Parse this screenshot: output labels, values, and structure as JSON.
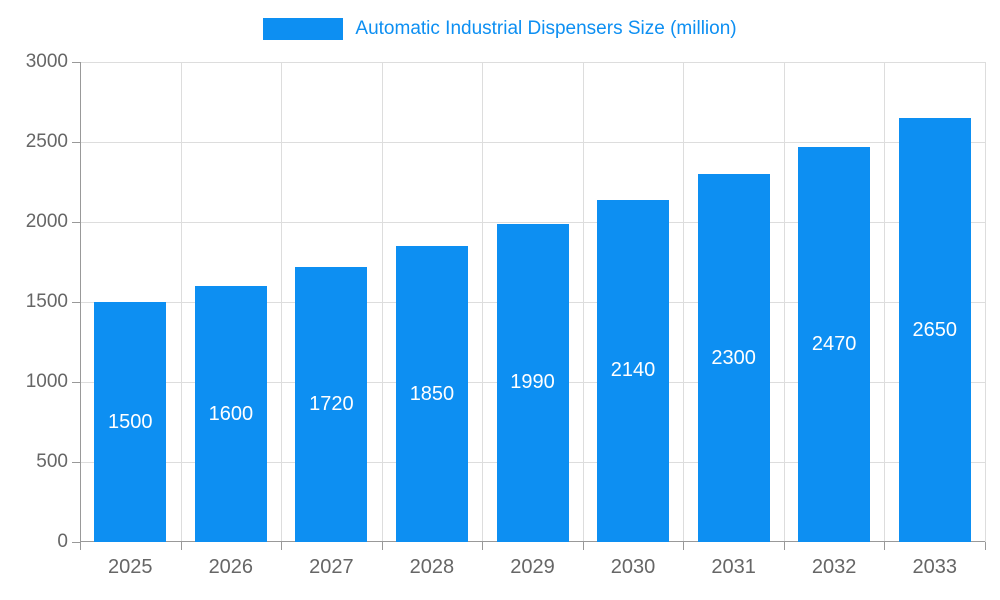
{
  "chart_data": {
    "type": "bar",
    "title": "Automatic Industrial Dispensers Size (million)",
    "categories": [
      "2025",
      "2026",
      "2027",
      "2028",
      "2029",
      "2030",
      "2031",
      "2032",
      "2033"
    ],
    "values": [
      1500,
      1600,
      1720,
      1850,
      1990,
      2140,
      2300,
      2470,
      2650
    ],
    "xlabel": "",
    "ylabel": "",
    "ylim": [
      0,
      3000
    ],
    "ytick_interval": 500,
    "grid": true,
    "legend_position": "top",
    "bar_color": "#0d8ff2",
    "value_label_color": "#ffffff",
    "tick_label_color": "#666666",
    "grid_color": "#dddddd",
    "axis_line_color": "#999999",
    "background_color": "#ffffff"
  }
}
